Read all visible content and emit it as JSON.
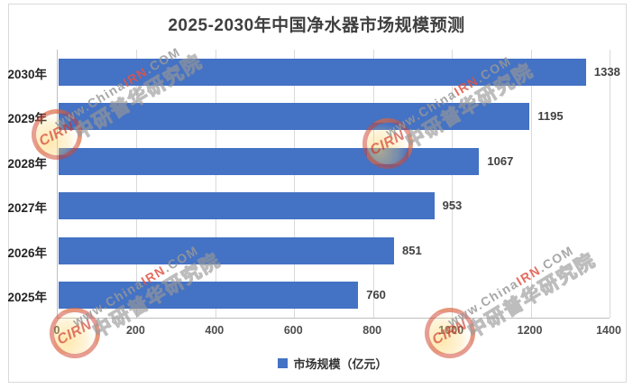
{
  "title": "2025-2030年中国净水器市场规模预测",
  "chart_data": {
    "type": "bar",
    "orientation": "horizontal",
    "title": "2025-2030年中国净水器市场规模预测",
    "categories": [
      "2030年",
      "2029年",
      "2028年",
      "2027年",
      "2026年",
      "2025年"
    ],
    "values": [
      1338,
      1195,
      1067,
      953,
      851,
      760
    ],
    "series_name": "市场规模（亿元）",
    "xlabel": "",
    "ylabel": "",
    "xlim": [
      0,
      1400
    ],
    "x_ticks": [
      0,
      200,
      400,
      600,
      800,
      1000,
      1200,
      1400
    ],
    "grid": true,
    "legend_position": "bottom",
    "bar_color": "#4472C4",
    "data_labels": true
  },
  "legend": {
    "label": "市场规模（亿元）",
    "swatch_color": "#4472C4"
  },
  "watermark": {
    "line1_pre": "www.China",
    "line1_highlight": "IRN",
    "line1_post": ".COM",
    "line2": "中研普华研究院",
    "logo_text": "CIRN",
    "text_color": "#989898",
    "highlight_color": "#E05444",
    "logo_color": "#CE3E2E"
  }
}
